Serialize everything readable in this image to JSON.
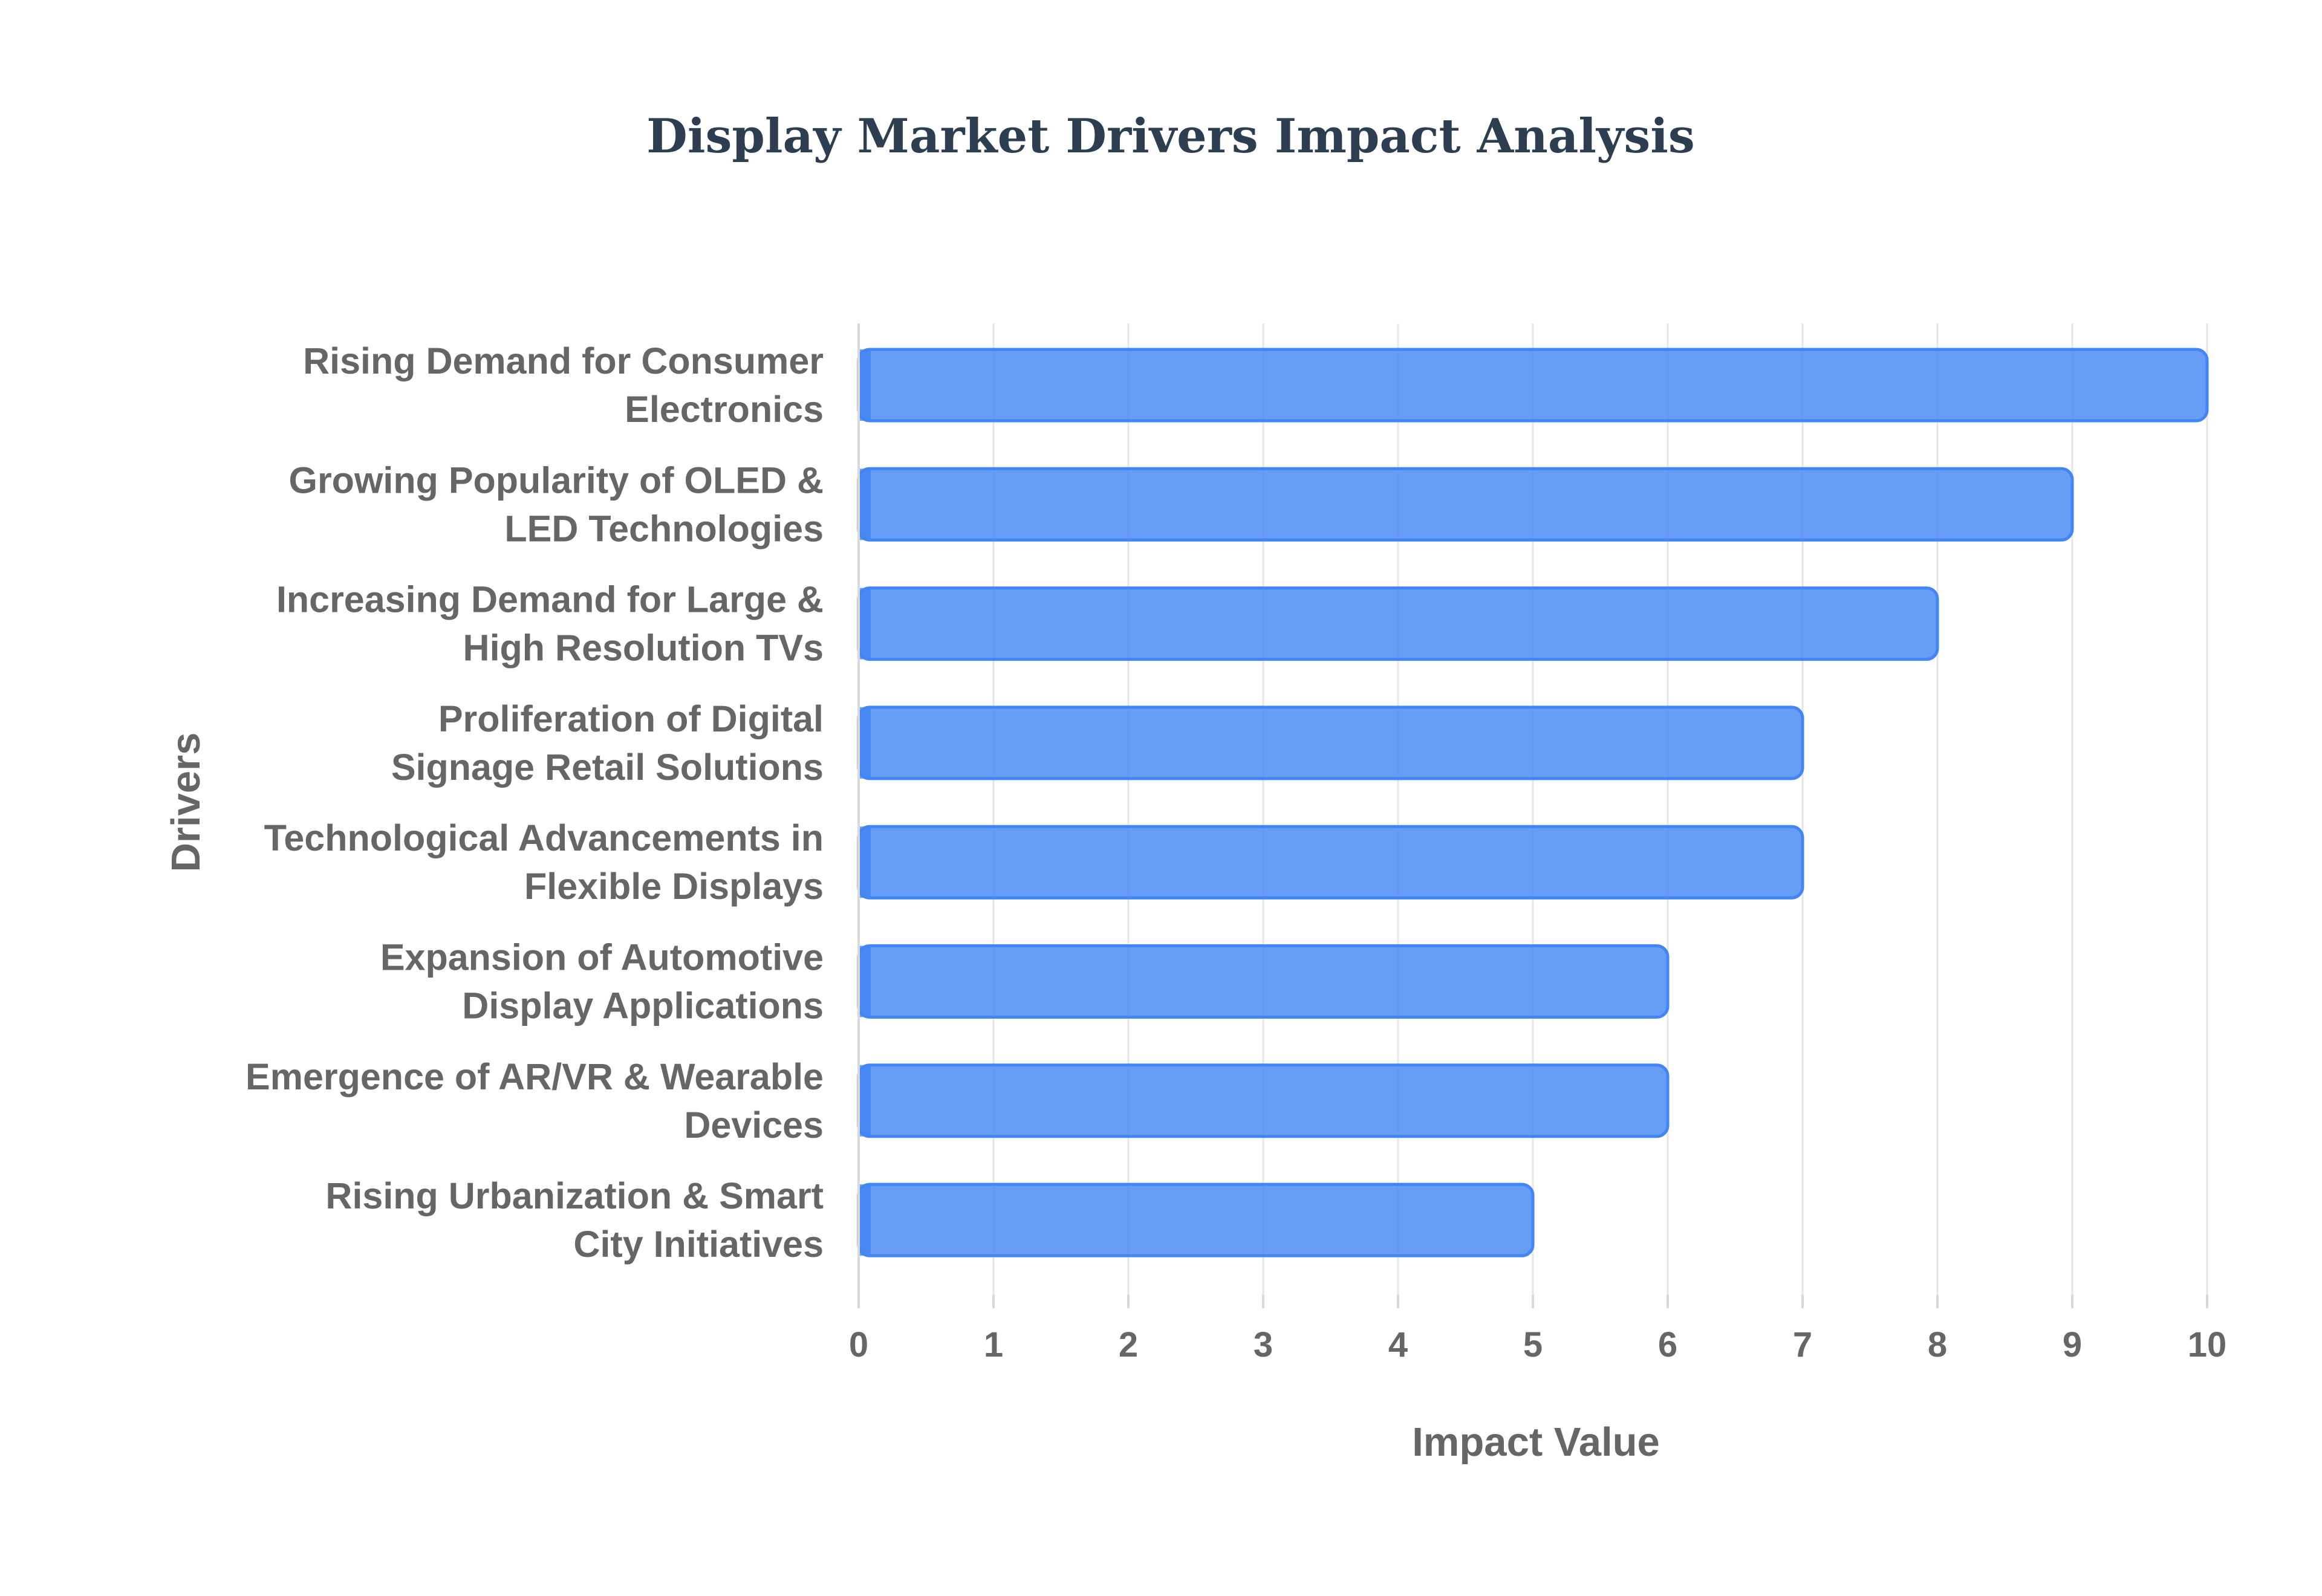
{
  "chart_data": {
    "type": "bar",
    "orientation": "horizontal",
    "title": "Display Market Drivers Impact Analysis",
    "xlabel": "Impact Value",
    "ylabel": "Drivers",
    "xlim": [
      0,
      10
    ],
    "x_ticks": [
      "0",
      "1",
      "2",
      "3",
      "4",
      "5",
      "6",
      "7",
      "8",
      "9",
      "10"
    ],
    "grid": true,
    "legend": "none",
    "bar_color": "#4285f4",
    "bar_fill_opacity": 0.8,
    "categories": [
      [
        "Rising Demand for Consumer",
        "Electronics"
      ],
      [
        "Growing Popularity of OLED &",
        "LED Technologies"
      ],
      [
        "Increasing Demand for Large &",
        "High Resolution TVs"
      ],
      [
        "Proliferation of Digital",
        "Signage Retail Solutions"
      ],
      [
        "Technological Advancements in",
        "Flexible Displays"
      ],
      [
        "Expansion of Automotive",
        "Display Applications"
      ],
      [
        "Emergence of AR/VR & Wearable",
        "Devices"
      ],
      [
        "Rising Urbanization & Smart",
        "City Initiatives"
      ]
    ],
    "values": [
      10,
      9,
      8,
      7,
      7,
      6,
      6,
      5
    ]
  }
}
